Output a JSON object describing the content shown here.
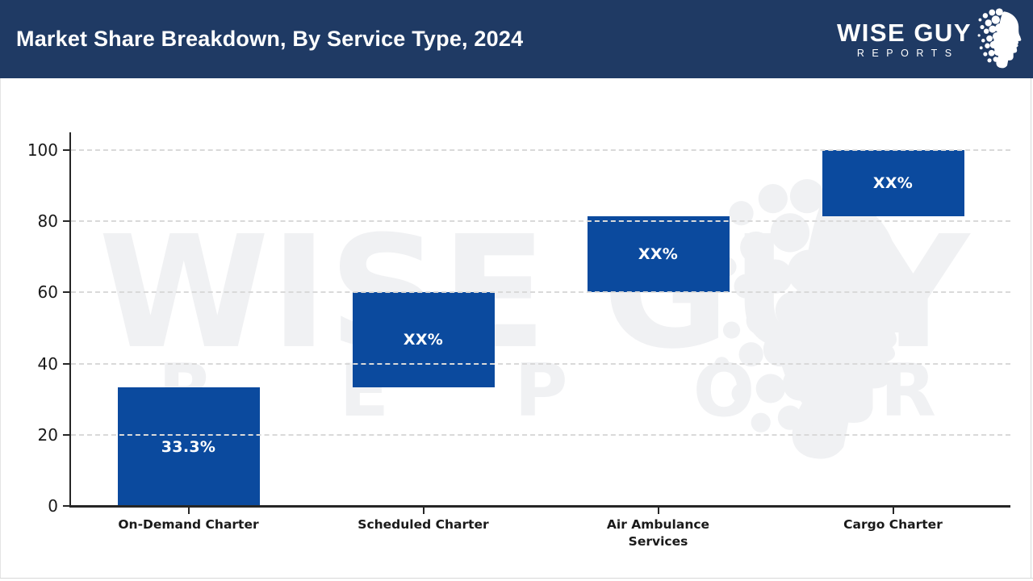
{
  "header": {
    "title": "Market Share Breakdown, By Service Type, 2024",
    "logo": {
      "line1": "WISE GUY",
      "line2": "REPORTS"
    }
  },
  "watermark": {
    "line1": "WISE GUY",
    "line2": "R E P O R T S"
  },
  "colors": {
    "header_bg": "#1f3a64",
    "bar": "#0b4a9e",
    "grid": "#d9d9d9",
    "axis": "#262626",
    "watermark": "#f0f1f3",
    "text_dark": "#1a1a1a",
    "bar_label": "#ffffff"
  },
  "chart_data": {
    "type": "bar",
    "subtype": "waterfall-stacked-percentage",
    "title": "Market Share Breakdown, By Service Type, 2024",
    "xlabel": "",
    "ylabel": "",
    "ylim": [
      0,
      100
    ],
    "yticks": [
      0,
      20,
      40,
      60,
      80,
      100
    ],
    "grid": "horizontal-dashed",
    "legend": "none",
    "categories": [
      "On-Demand Charter",
      "Scheduled Charter",
      "Air Ambulance\nServices",
      "Cargo Charter"
    ],
    "bars": [
      {
        "category": "On-Demand Charter",
        "start": 0,
        "end": 33.3,
        "label": "33.3%"
      },
      {
        "category": "Scheduled Charter",
        "start": 33.3,
        "end": 60,
        "label": "XX%"
      },
      {
        "category": "Air Ambulance\nServices",
        "start": 60,
        "end": 81.3,
        "label": "XX%"
      },
      {
        "category": "Cargo Charter",
        "start": 81.3,
        "end": 100,
        "label": "XX%"
      }
    ]
  }
}
